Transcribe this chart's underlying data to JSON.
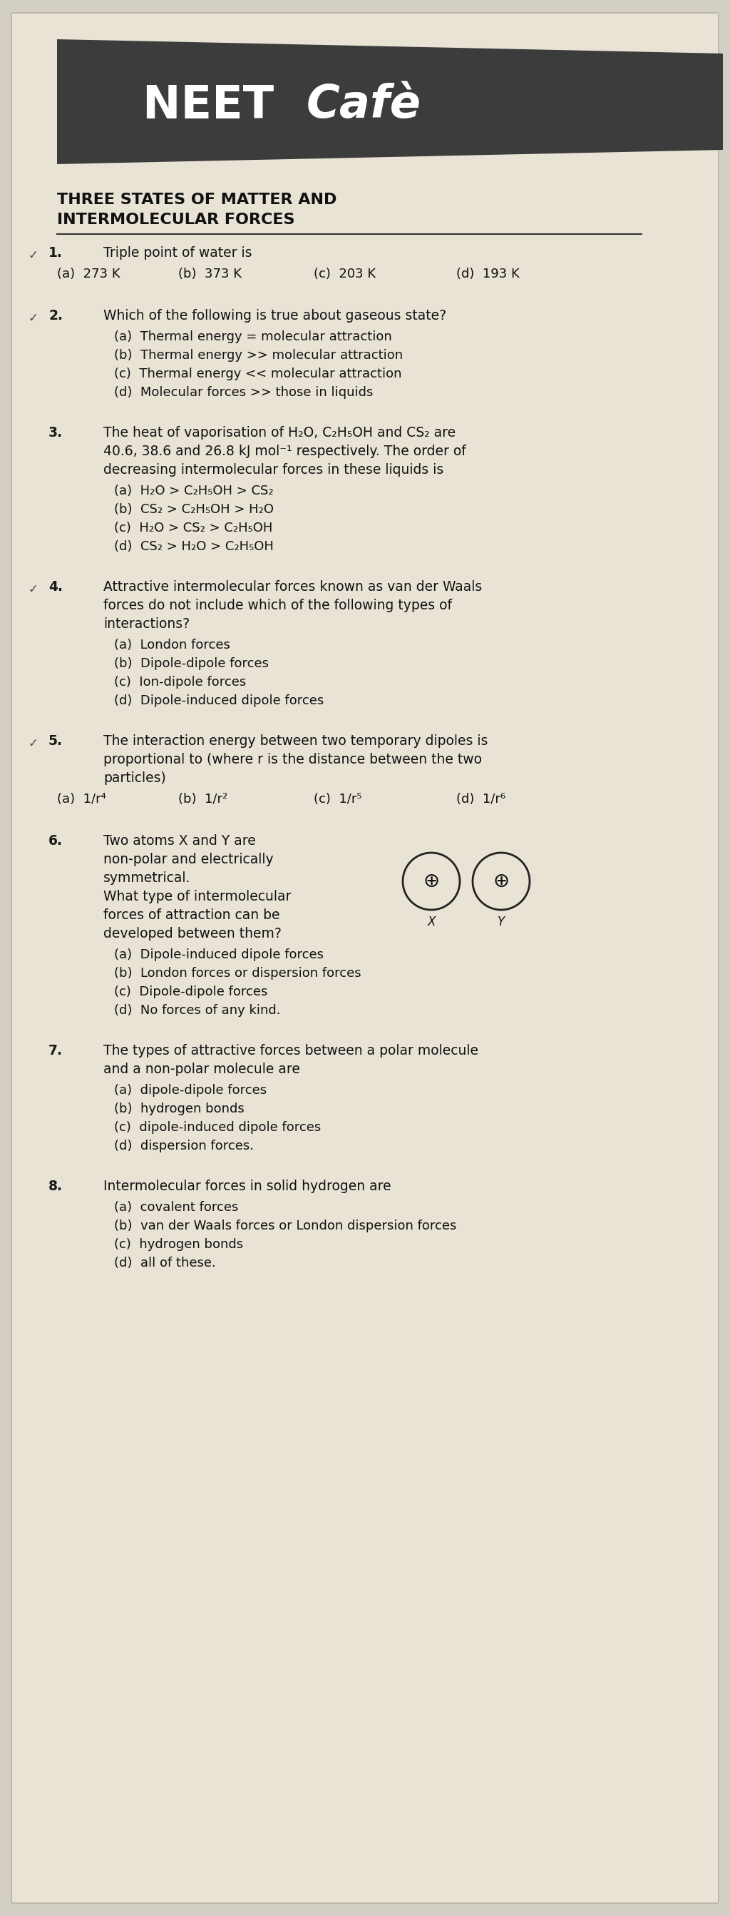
{
  "bg_color": "#d4cfc4",
  "page_bg": "#e8e3d5",
  "header_bg": "#3a3a3a",
  "header_text": "NEET Cafè",
  "section_title_line1": "THREE STATES OF MATTER AND",
  "section_title_line2": "INTERMOLECULAR FORCES",
  "questions": [
    {
      "num": "1.",
      "checkmark": true,
      "num_style": "handwritten",
      "text": "Triple point of water is",
      "options_inline": true,
      "options": [
        "(a)  273 K",
        "(b)  373 K",
        "(c)  203 K",
        "(d)  193 K"
      ]
    },
    {
      "num": "2.",
      "checkmark": true,
      "num_style": "handwritten",
      "text": "Which of the following is true about gaseous state?",
      "options_inline": false,
      "options": [
        "(a)  Thermal energy = molecular attraction",
        "(b)  Thermal energy >> molecular attraction",
        "(c)  Thermal energy << molecular attraction",
        "(d)  Molecular forces >> those in liquids"
      ]
    },
    {
      "num": "3.",
      "checkmark": false,
      "num_style": "handwritten",
      "text": "The heat of vaporisation of H₂O, C₂H₅OH and CS₂ are\n40.6, 38.6 and 26.8 kJ mol⁻¹ respectively. The order of\ndecreasing intermolecular forces in these liquids is",
      "options_inline": false,
      "options": [
        "(a)  H₂O > C₂H₅OH > CS₂",
        "(b)  CS₂ > C₂H₅OH > H₂O",
        "(c)  H₂O > CS₂ > C₂H₅OH",
        "(d)  CS₂ > H₂O > C₂H₅OH"
      ]
    },
    {
      "num": "4.",
      "checkmark": true,
      "num_style": "handwritten",
      "text": "Attractive intermolecular forces known as van der Waals\nforces do not include which of the following types of\ninteractions?",
      "options_inline": false,
      "options": [
        "(a)  London forces",
        "(b)  Dipole-dipole forces",
        "(c)  Ion-dipole forces",
        "(d)  Dipole-induced dipole forces"
      ]
    },
    {
      "num": "5.",
      "checkmark": true,
      "num_style": "printed",
      "text": "The interaction energy between two temporary dipoles is\nproportional to (where r is the distance between the two\nparticles)",
      "options_inline": true,
      "options": [
        "(a)  1/r⁴",
        "(b)  1/r²",
        "(c)  1/r⁵",
        "(d)  1/r⁶"
      ]
    },
    {
      "num": "6.",
      "checkmark": false,
      "num_style": "handwritten",
      "text_left": "Two atoms X and Y are\nnon-polar and electrically\nsymmetrical.\nWhat type of intermolecular\nforces of attraction can be\ndeveloped between them?",
      "has_diagram": true,
      "options_inline": false,
      "options": [
        "(a)  Dipole-induced dipole forces",
        "(b)  London forces or dispersion forces",
        "(c)  Dipole-dipole forces",
        "(d)  No forces of any kind."
      ]
    },
    {
      "num": "7.",
      "checkmark": false,
      "num_style": "handwritten",
      "text": "The types of attractive forces between a polar molecule\nand a non-polar molecule are",
      "options_inline": false,
      "options": [
        "(a)  dipole-dipole forces",
        "(b)  hydrogen bonds",
        "(c)  dipole-induced dipole forces",
        "(d)  dispersion forces."
      ]
    },
    {
      "num": "8.",
      "checkmark": false,
      "num_style": "handwritten",
      "text": "Intermolecular forces in solid hydrogen are",
      "options_inline": false,
      "options": [
        "(a)  covalent forces",
        "(b)  van der Waals forces or London dispersion forces",
        "(c)  hydrogen bonds",
        "(d)  all of these."
      ]
    }
  ]
}
